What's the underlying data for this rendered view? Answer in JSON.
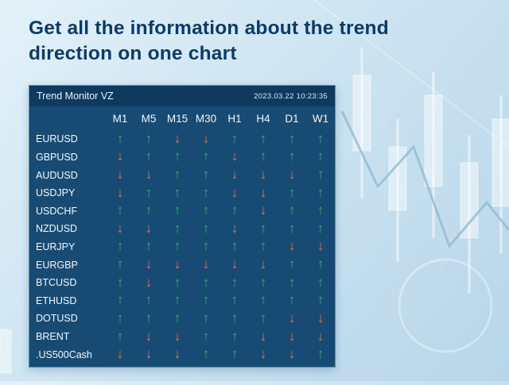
{
  "page": {
    "heading": "Get all the information about the trend direction on one chart"
  },
  "panel": {
    "title": "Trend Monitor VZ",
    "timestamp": "2023.03.22 10:23:35",
    "columns": [
      "M1",
      "M5",
      "M15",
      "M30",
      "H1",
      "H4",
      "D1",
      "W1"
    ],
    "rows": [
      {
        "symbol": "EURUSD",
        "trends": [
          "up",
          "up",
          "down",
          "down",
          "up",
          "up",
          "up",
          "up"
        ]
      },
      {
        "symbol": "GBPUSD",
        "trends": [
          "down",
          "up",
          "up",
          "up",
          "down",
          "up",
          "up",
          "up"
        ]
      },
      {
        "symbol": "AUDUSD",
        "trends": [
          "down",
          "down",
          "up",
          "up",
          "down",
          "down",
          "down",
          "up"
        ]
      },
      {
        "symbol": "USDJPY",
        "trends": [
          "down",
          "up",
          "up",
          "up",
          "down",
          "down",
          "up",
          "up"
        ]
      },
      {
        "symbol": "USDCHF",
        "trends": [
          "up",
          "up",
          "up",
          "up",
          "up",
          "down",
          "up",
          "up"
        ]
      },
      {
        "symbol": "NZDUSD",
        "trends": [
          "down",
          "down",
          "up",
          "up",
          "down",
          "up",
          "up",
          "up"
        ]
      },
      {
        "symbol": "EURJPY",
        "trends": [
          "up",
          "up",
          "up",
          "up",
          "up",
          "up",
          "down",
          "down"
        ]
      },
      {
        "symbol": "EURGBP",
        "trends": [
          "up",
          "down",
          "down",
          "down",
          "down",
          "down",
          "up",
          "up"
        ]
      },
      {
        "symbol": "BTCUSD",
        "trends": [
          "up",
          "down",
          "up",
          "up",
          "up",
          "up",
          "up",
          "up"
        ]
      },
      {
        "symbol": "ETHUSD",
        "trends": [
          "up",
          "up",
          "up",
          "up",
          "up",
          "up",
          "up",
          "up"
        ]
      },
      {
        "symbol": "DOTUSD",
        "trends": [
          "up",
          "up",
          "up",
          "up",
          "up",
          "up",
          "down",
          "down"
        ]
      },
      {
        "symbol": "BRENT",
        "trends": [
          "up",
          "down",
          "down",
          "up",
          "up",
          "down",
          "down",
          "down"
        ]
      },
      {
        "symbol": ".US500Cash",
        "trends": [
          "down",
          "down",
          "down",
          "up",
          "up",
          "down",
          "down",
          "up"
        ]
      }
    ]
  },
  "icons": {
    "up_arrow": "↑",
    "down_arrow": "↓"
  },
  "colors": {
    "heading": "#0b3b68",
    "panel_bg": "#174b74",
    "panel_header_bg": "#0e3a5f",
    "up": "#2eb06d",
    "down": "#e5704a"
  }
}
